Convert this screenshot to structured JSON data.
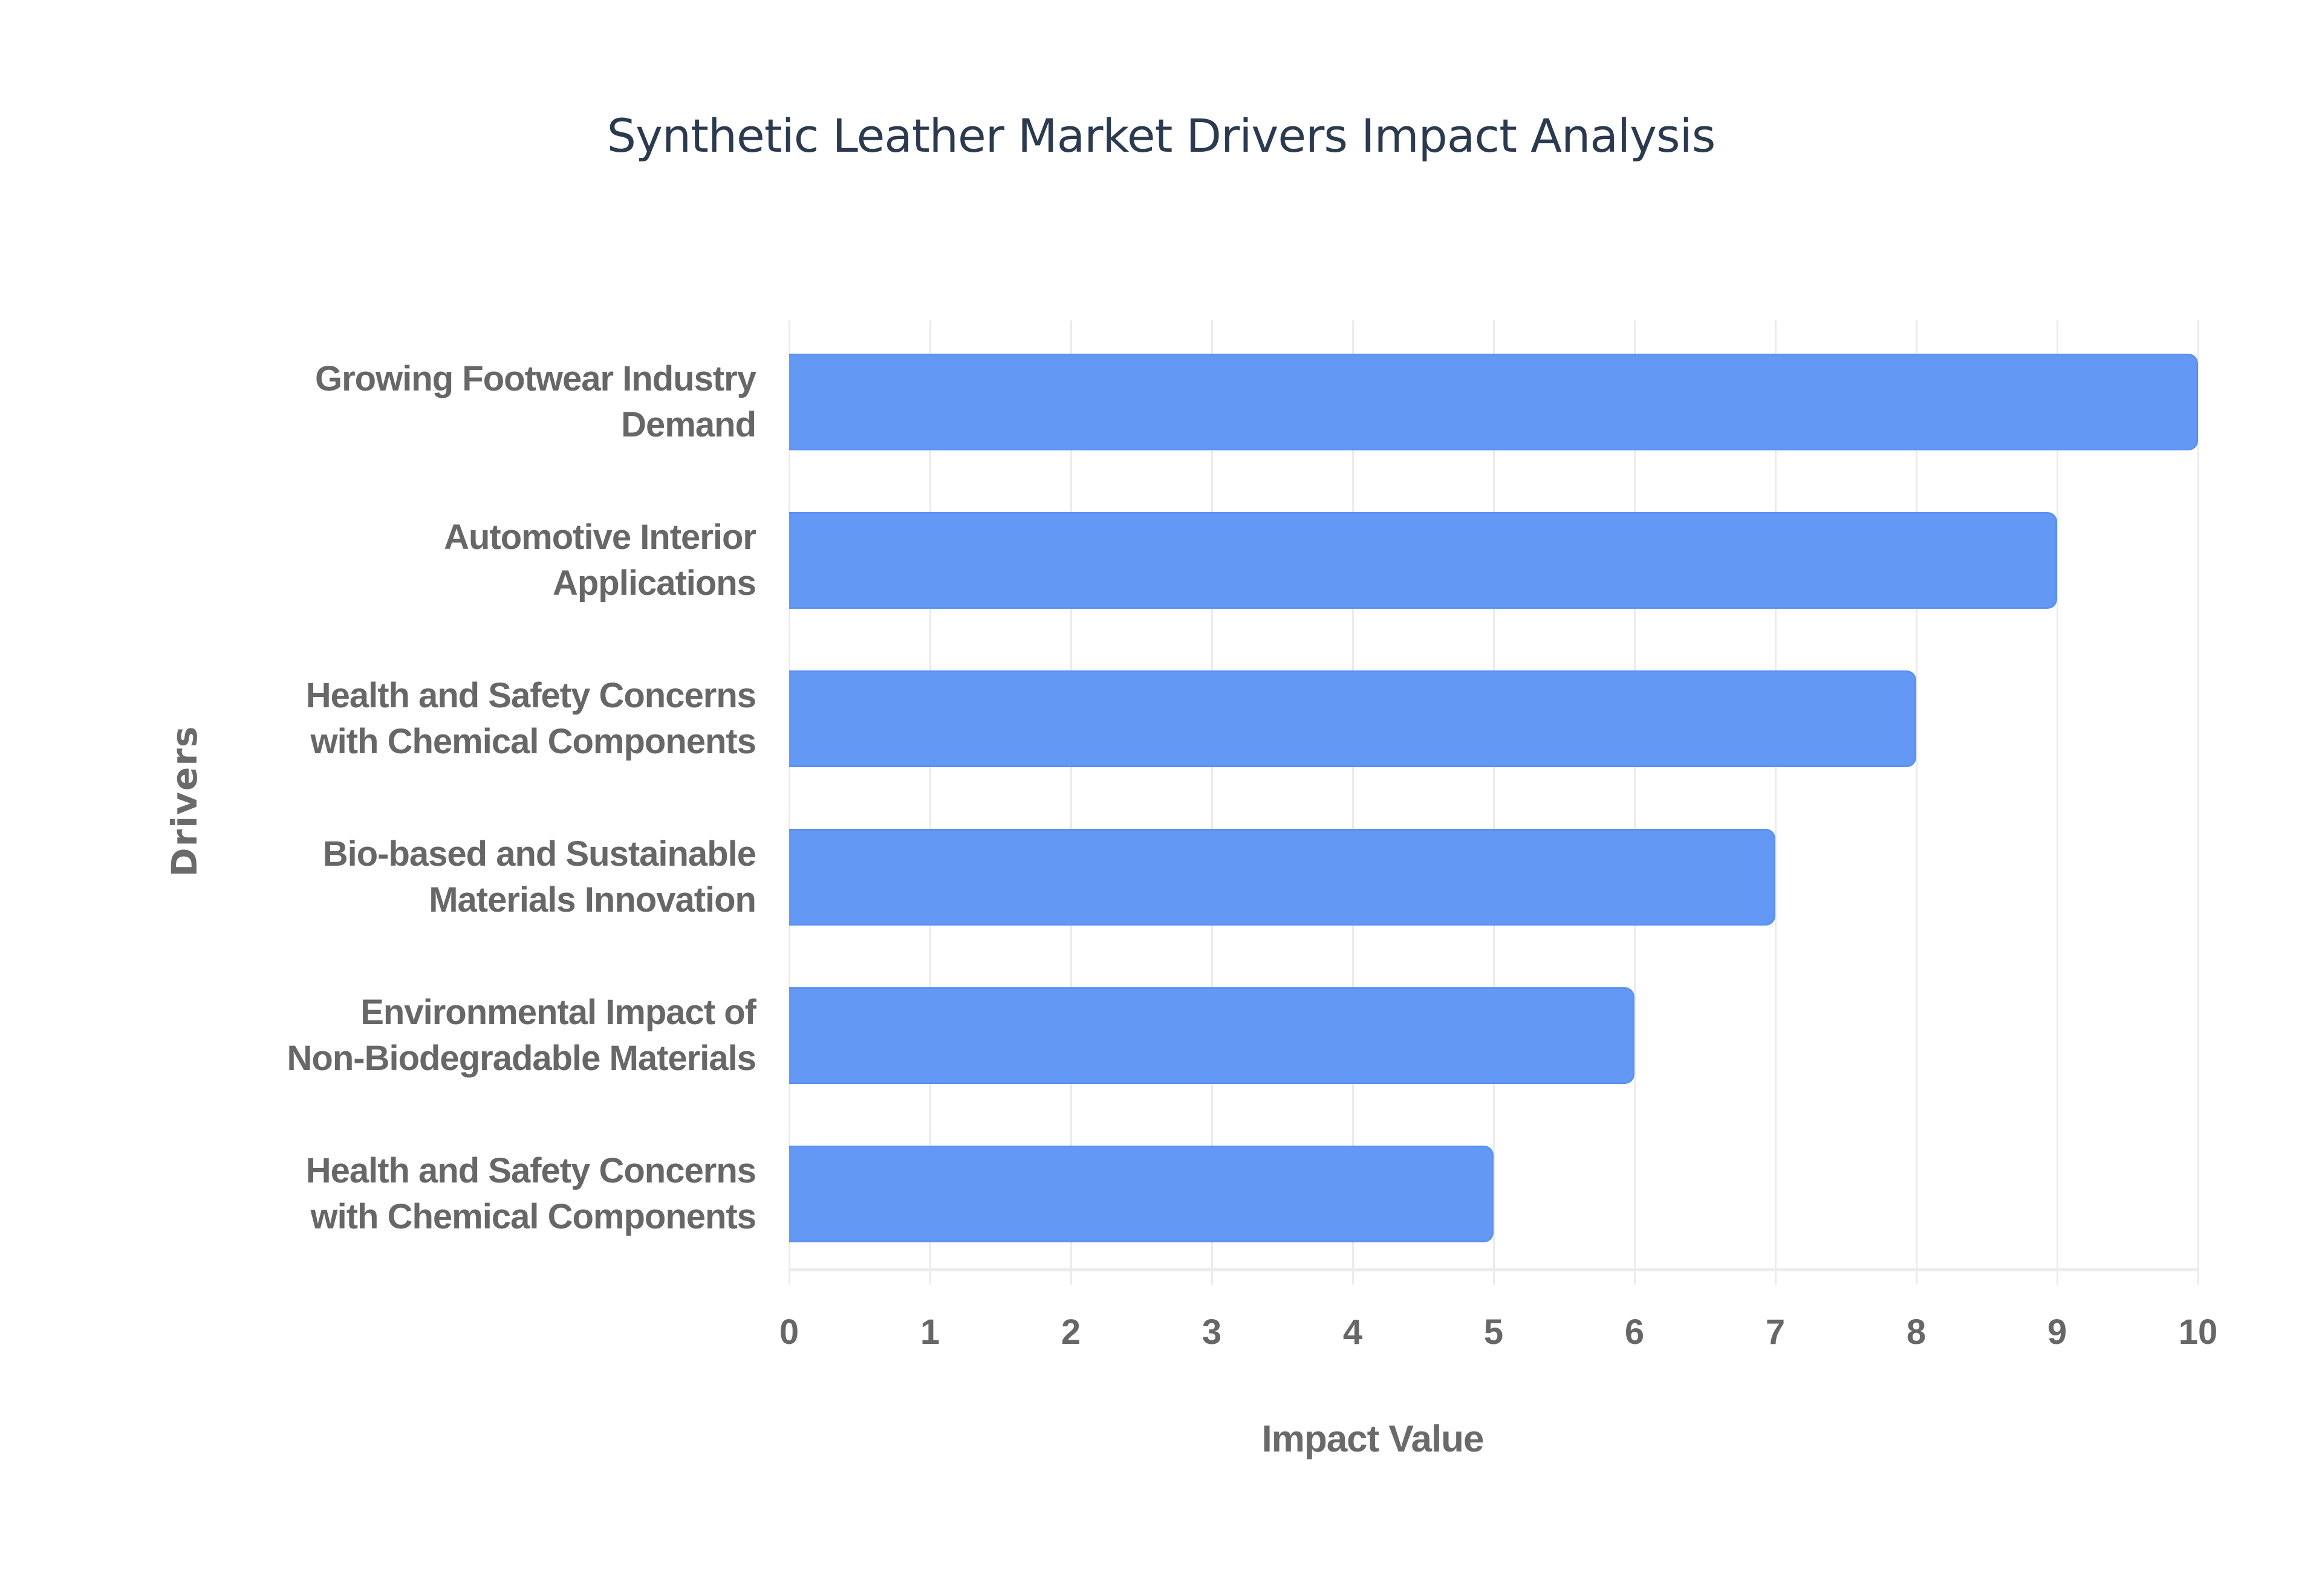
{
  "chart_data": {
    "type": "bar",
    "orientation": "horizontal",
    "title": "Synthetic Leather Market Drivers Impact Analysis",
    "xlabel": "Impact Value",
    "ylabel": "Drivers",
    "xlim": [
      0,
      10
    ],
    "x_ticks": [
      "0",
      "1",
      "2",
      "3",
      "4",
      "5",
      "6",
      "7",
      "8",
      "9",
      "10"
    ],
    "grid": true,
    "legend": null,
    "bar_color": "#6399f5",
    "categories": [
      [
        "Growing Footwear Industry",
        "Demand"
      ],
      [
        "Automotive Interior",
        "Applications"
      ],
      [
        "Health and Safety Concerns",
        "with Chemical Components"
      ],
      [
        "Bio-based and Sustainable",
        "Materials Innovation"
      ],
      [
        "Environmental Impact of",
        "Non-Biodegradable Materials"
      ],
      [
        "Health and Safety Concerns",
        "with Chemical Components"
      ]
    ],
    "values": [
      10,
      9,
      8,
      7,
      6,
      5
    ]
  }
}
